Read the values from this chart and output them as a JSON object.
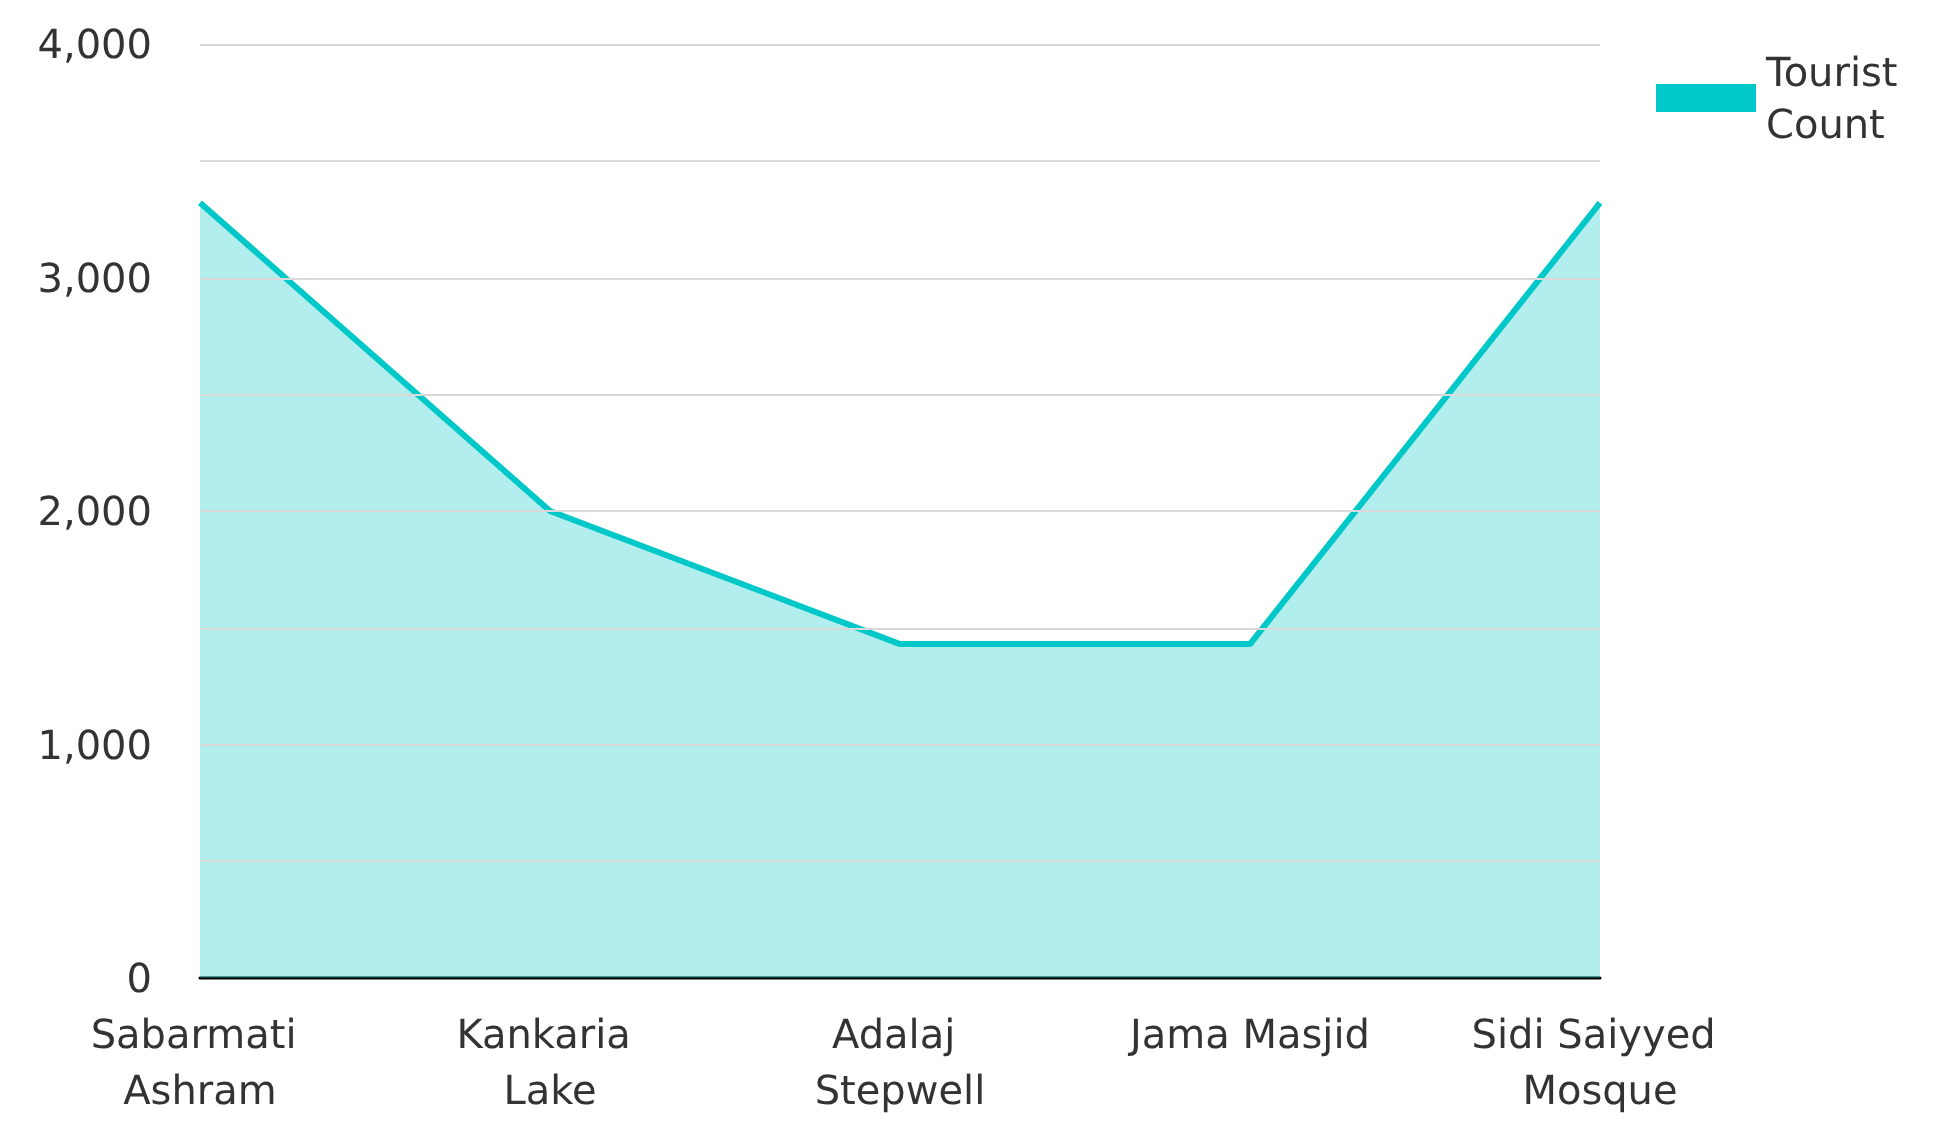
{
  "chart_data": {
    "type": "area",
    "categories": [
      "Sabarmati Ashram",
      "Kankaria Lake",
      "Adalaj Stepwell",
      "Jama Masjid",
      "Sidi Saiyyed Mosque"
    ],
    "series": [
      {
        "name": "Tourist Count",
        "color": "#00c8c8",
        "values": [
          3320,
          2000,
          1430,
          1430,
          3320
        ]
      }
    ],
    "ylim": [
      0,
      4000
    ],
    "yticks": [
      0,
      {
        "value": 500,
        "label": null
      },
      {
        "value": 1000,
        "label": "1,000"
      },
      {
        "value": 1500,
        "label": null
      },
      {
        "value": 2000,
        "label": "2,000"
      },
      {
        "value": 2500,
        "label": null
      },
      {
        "value": 3000,
        "label": "3,000"
      },
      {
        "value": 3500,
        "label": null
      },
      {
        "value": 4000,
        "label": "4,000"
      }
    ],
    "grid": "y",
    "legend": "top right",
    "marker": "none"
  }
}
